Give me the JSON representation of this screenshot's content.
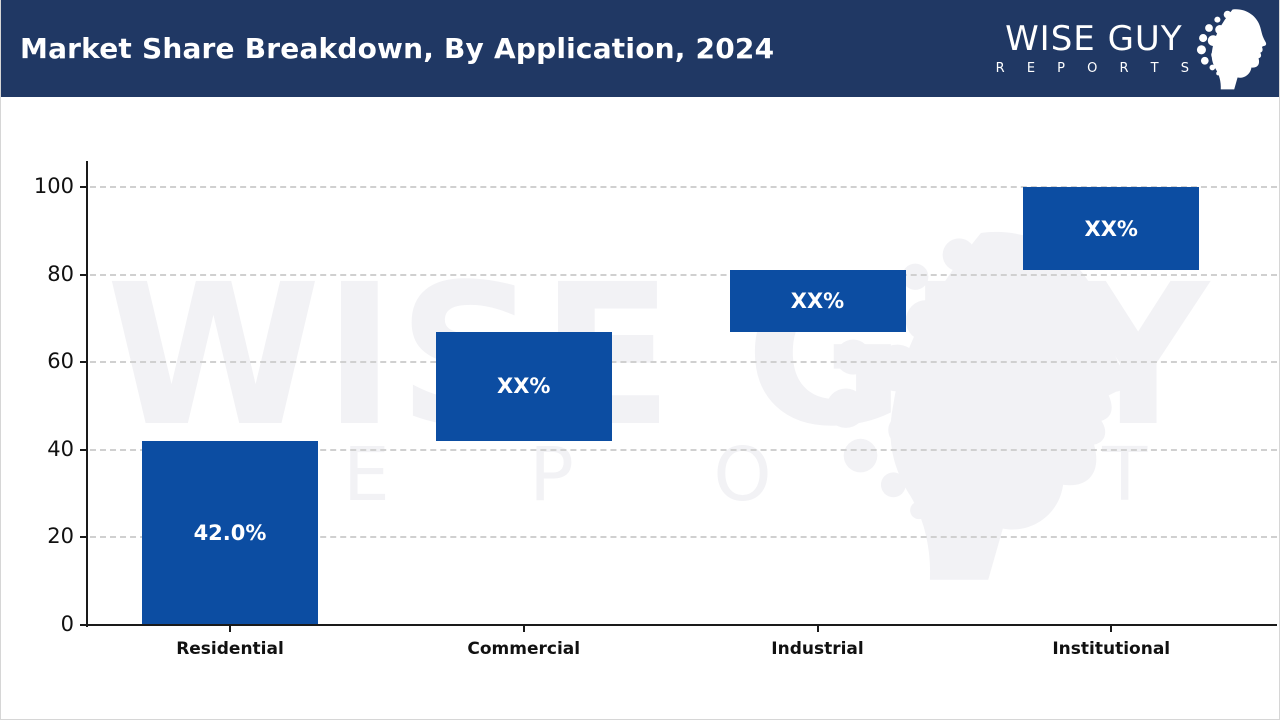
{
  "header": {
    "title": "Market Share Breakdown, By Application, 2024",
    "bg_color": "#203864",
    "logo": {
      "line1": "WISE GUY",
      "line2": "R E P O R T S",
      "icon": "dotted-head-profile"
    }
  },
  "watermark": {
    "line1": "WISE GUY",
    "line2": "R E P O R T S",
    "icon": "dotted-head-profile",
    "color": "#f2f2f5"
  },
  "chart_data": {
    "type": "bar",
    "subtype": "waterfall",
    "title": "Market Share Breakdown, By Application, 2024",
    "categories": [
      "Residential",
      "Commercial",
      "Industrial",
      "Institutional"
    ],
    "segments": [
      {
        "category": "Residential",
        "start": 0,
        "end": 42,
        "value": 42,
        "label": "42.0%"
      },
      {
        "category": "Commercial",
        "start": 42,
        "end": 67,
        "value": 25,
        "label": "XX%"
      },
      {
        "category": "Industrial",
        "start": 67,
        "end": 81,
        "value": 14,
        "label": "XX%"
      },
      {
        "category": "Institutional",
        "start": 81,
        "end": 100,
        "value": 19,
        "label": "XX%"
      }
    ],
    "xlabel": "",
    "ylabel": "",
    "ylim": [
      0,
      100
    ],
    "yticks": [
      0,
      20,
      40,
      60,
      80,
      100
    ],
    "grid": "horizontal-dashed",
    "legend": "none",
    "bar_color": "#0C4DA2",
    "bar_label_color": "#ffffff",
    "axis_color": "#1a1a1a",
    "grid_color": "#d0d0d0"
  }
}
